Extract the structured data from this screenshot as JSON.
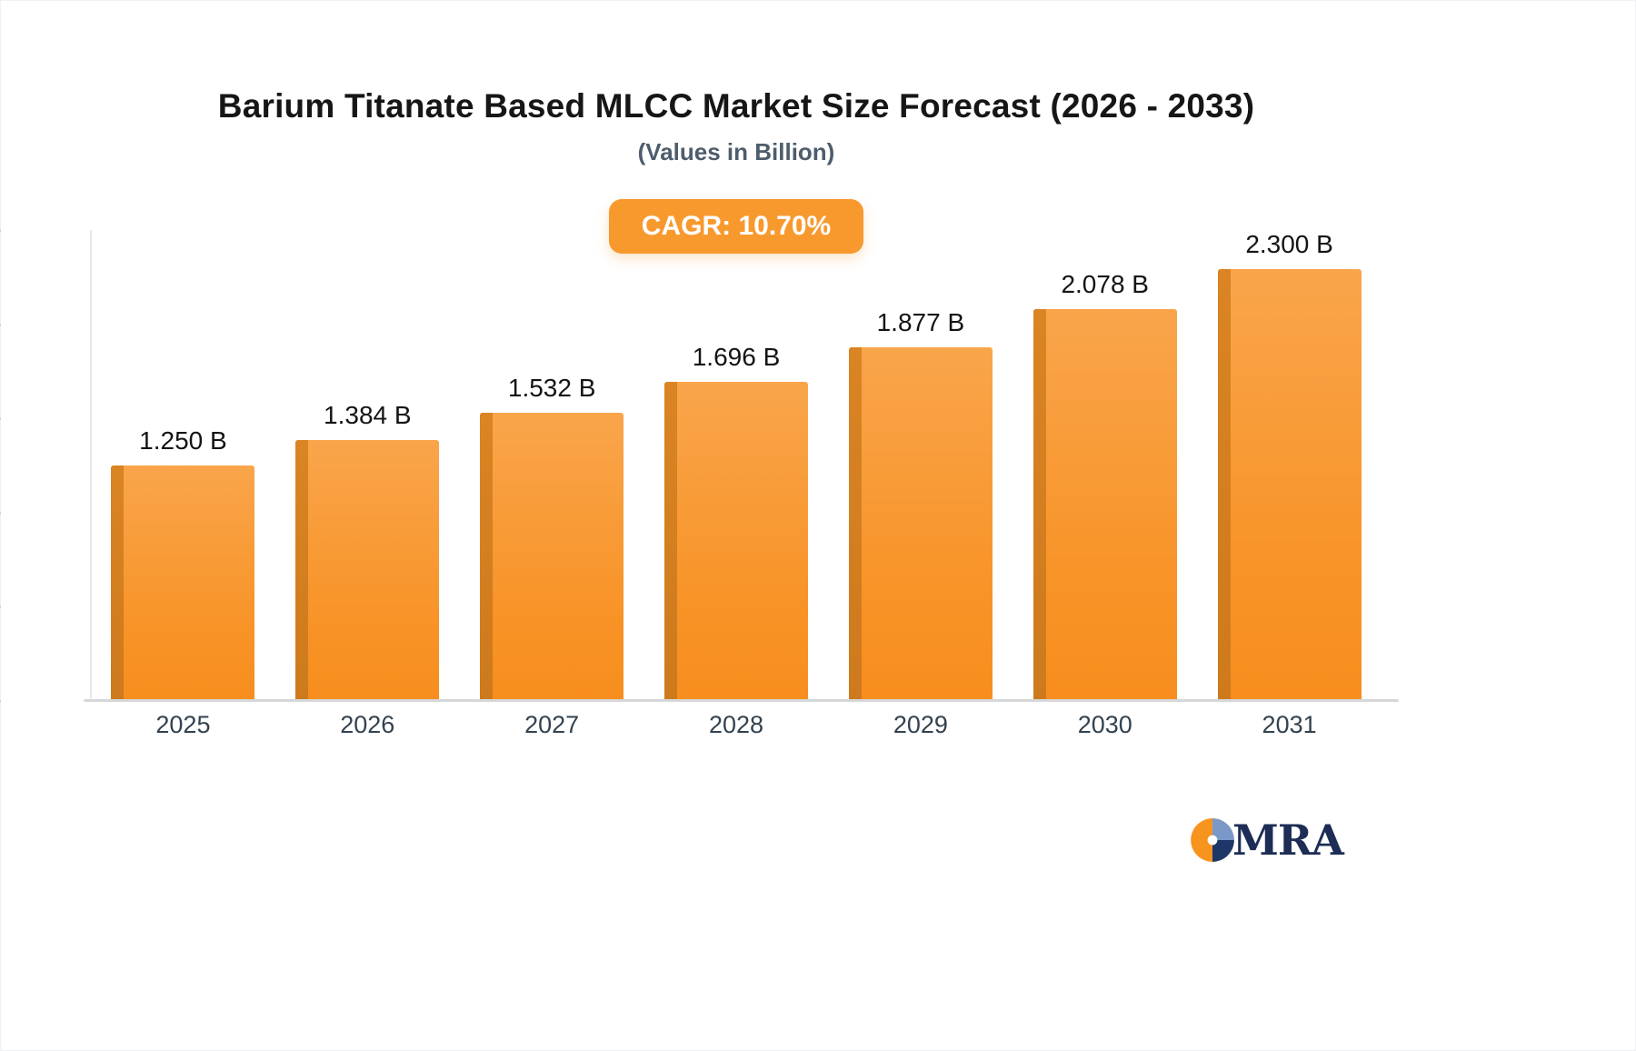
{
  "header": {
    "title": "Barium Titanate Based MLCC Market Size Forecast (2026 - 2033)",
    "subtitle": "(Values in Billion)"
  },
  "badge": {
    "label": "CAGR: 10.70%",
    "color": "#f8992e"
  },
  "chart_data": {
    "type": "bar",
    "title": "Barium Titanate Based MLCC Market Size Forecast (2026 - 2033)",
    "subtitle": "(Values in Billion)",
    "annotation": "CAGR: 10.70%",
    "categories": [
      "2025",
      "2026",
      "2027",
      "2028",
      "2029",
      "2030",
      "2031"
    ],
    "values": [
      1.25,
      1.384,
      1.532,
      1.696,
      1.877,
      2.078,
      2.3
    ],
    "value_labels": [
      "1.250 B",
      "1.384 B",
      "1.532 B",
      "1.696 B",
      "1.877 B",
      "2.078 B",
      "2.300 B"
    ],
    "unit": "B",
    "ylim": [
      0,
      2.5
    ],
    "yticks": {
      "values": [
        2.5,
        2.0,
        1.5,
        1.0,
        0.5,
        0
      ],
      "labels": [
        "2.5B",
        "2.0B",
        "1.5B",
        "1.0B",
        "500.0M",
        "0"
      ]
    },
    "grid": false,
    "legend": "none",
    "bar_color_top": "#f9a54b",
    "bar_color_bottom": "#f78e1e",
    "bar_side_color": "#cd7a1d"
  },
  "logo": {
    "text": "MRA"
  }
}
